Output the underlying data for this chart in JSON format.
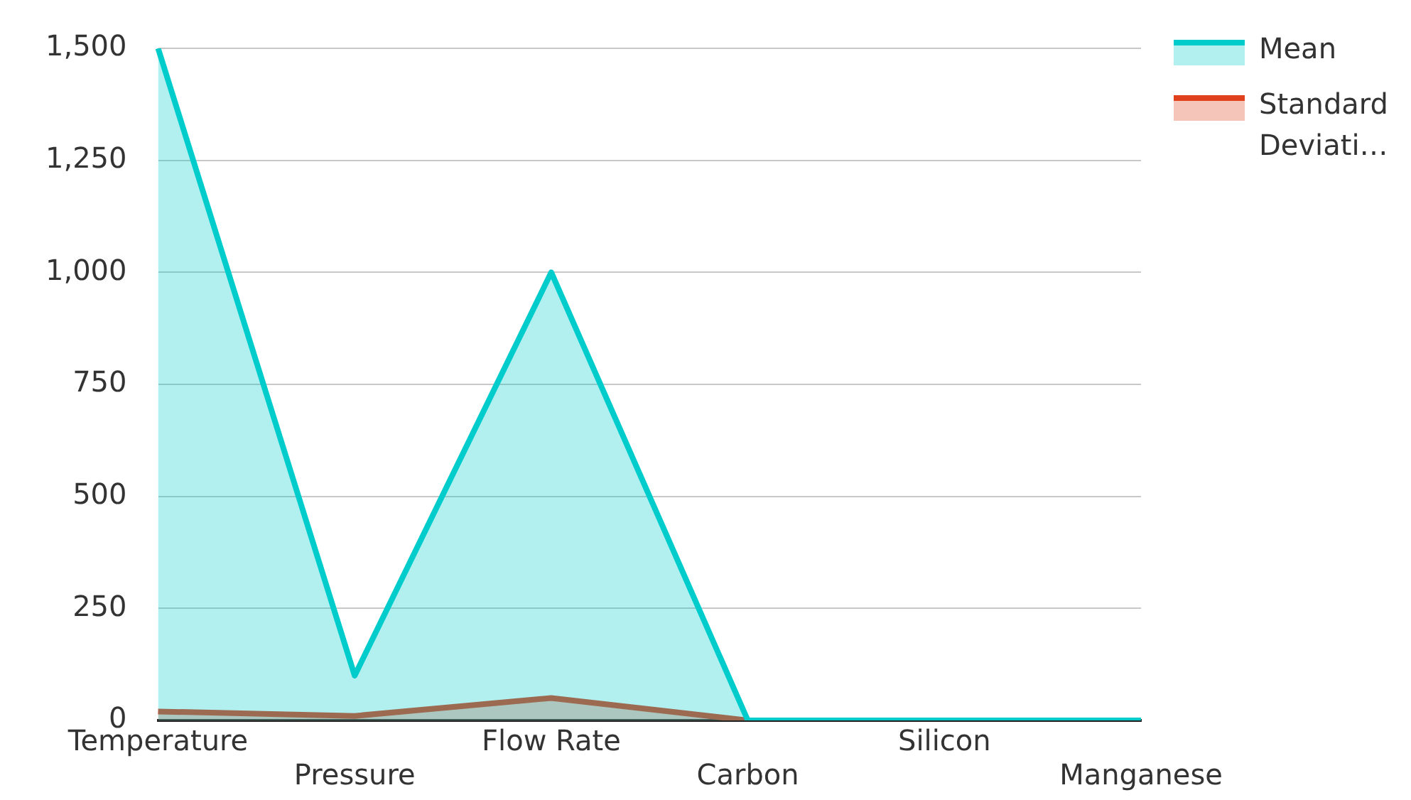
{
  "chart_data": {
    "type": "area",
    "categories": [
      "Temperature",
      "Pressure",
      "Flow Rate",
      "Carbon",
      "Silicon",
      "Manganese"
    ],
    "series": [
      {
        "name": "Mean",
        "color": "#00cccc",
        "values": [
          1500,
          100,
          1000,
          0,
          0,
          0
        ]
      },
      {
        "name": "Standard Deviati…",
        "color": "#e0401c",
        "values": [
          20,
          10,
          50,
          0,
          0,
          0
        ]
      }
    ],
    "ylim": [
      0,
      1500
    ],
    "yticks": [
      0,
      {
        "value": 250,
        "label": "250"
      },
      {
        "value": 500,
        "label": "500"
      },
      {
        "value": 750,
        "label": "750"
      },
      {
        "value": 1000,
        "label": "1,000"
      },
      {
        "value": 1250,
        "label": "1,250"
      },
      {
        "value": 1500,
        "label": "1,500"
      }
    ],
    "grid": "y",
    "legend": "right",
    "marker": "none",
    "line_style": "solid"
  }
}
